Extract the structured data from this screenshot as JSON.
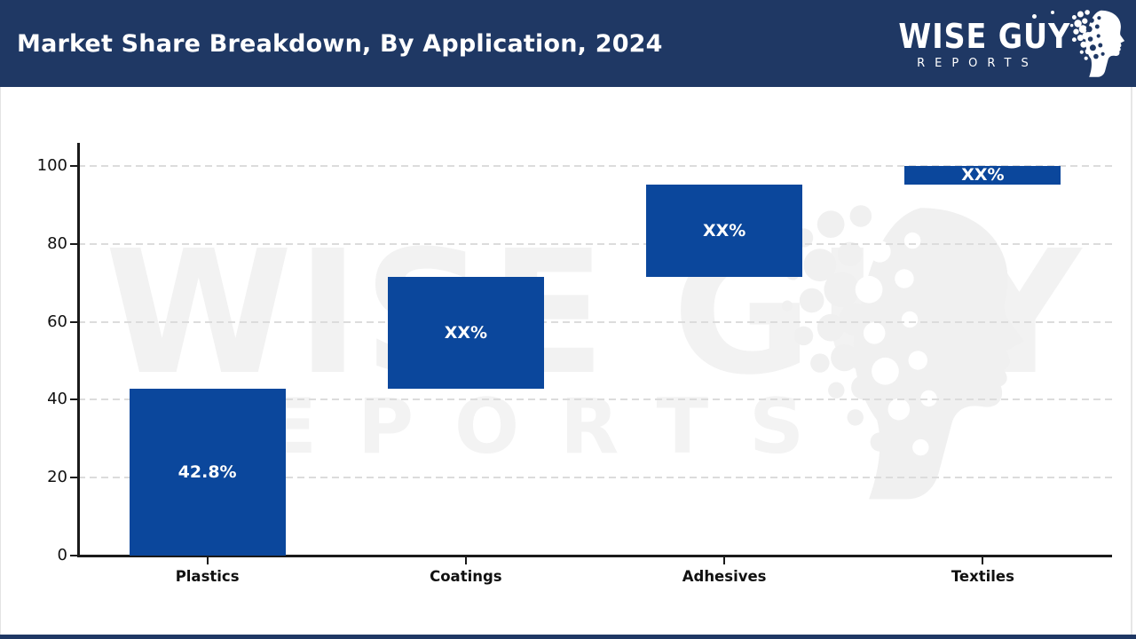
{
  "header": {
    "title": "Market Share Breakdown, By Application, 2024",
    "bg_color": "#1f3864",
    "logo": {
      "line1": "WISE GUY",
      "line2": "REPORTS"
    }
  },
  "watermark": {
    "line1": "WISE GUY",
    "line2": "REPORTS"
  },
  "chart_data": {
    "type": "bar",
    "subtype": "waterfall",
    "title": "Market Share Breakdown, By Application, 2024",
    "categories": [
      "Plastics",
      "Coatings",
      "Adhesives",
      "Textiles"
    ],
    "bars": [
      {
        "category": "Plastics",
        "start": 0,
        "end": 42.8,
        "label": "42.8%"
      },
      {
        "category": "Coatings",
        "start": 42.8,
        "end": 71.5,
        "label": "XX%"
      },
      {
        "category": "Adhesives",
        "start": 71.5,
        "end": 95.2,
        "label": "XX%"
      },
      {
        "category": "Textiles",
        "start": 95.2,
        "end": 100,
        "label": "XX%"
      }
    ],
    "xlabel": "",
    "ylabel": "",
    "ylim": [
      0,
      100
    ],
    "yticks": [
      0,
      20,
      40,
      60,
      80,
      100
    ],
    "grid": "horizontal-dashed",
    "legend": "none",
    "bar_color": "#0b479c",
    "bar_label_color": "#ffffff",
    "grid_color": "#dcdcdc",
    "axis_color": "#1a1a1a"
  }
}
